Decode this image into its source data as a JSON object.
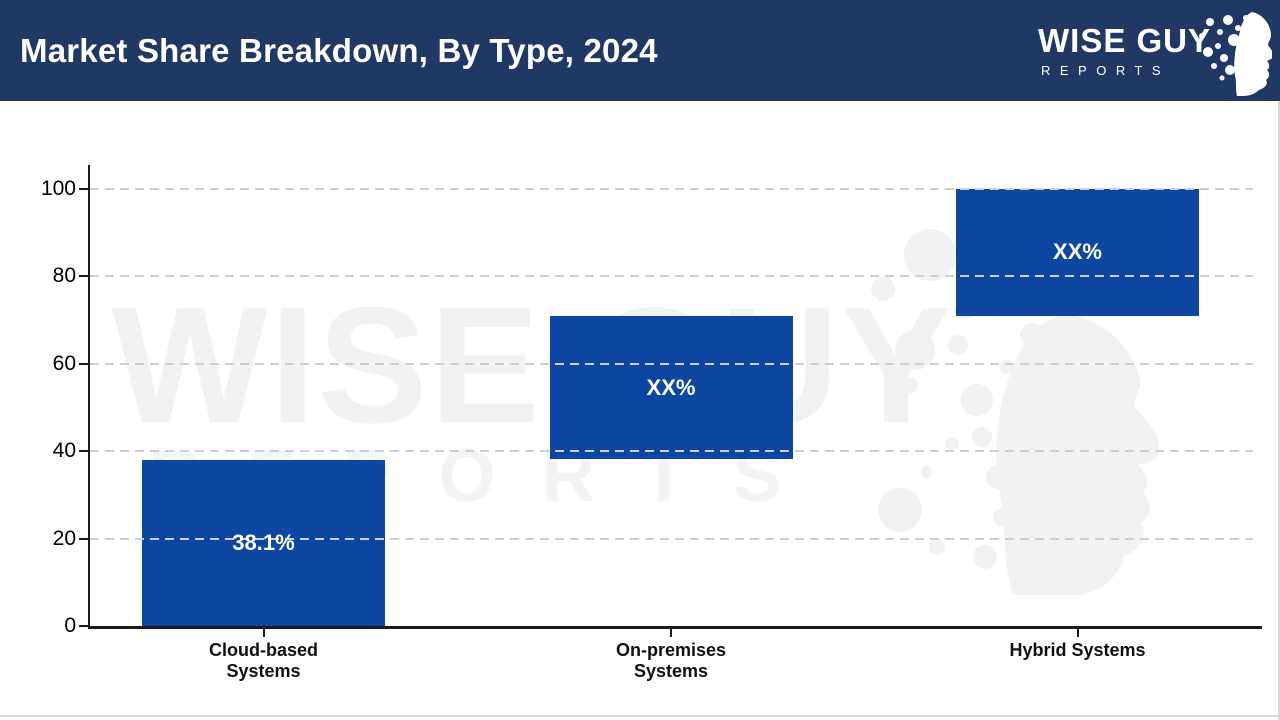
{
  "header": {
    "title": "Market Share Breakdown, By Type, 2024",
    "background_color": "#1f3864",
    "logo": {
      "line1": "WISE GUY",
      "line2": "REPORTS"
    }
  },
  "watermark": {
    "line1": "WISE GUY",
    "line2": "REPORTS"
  },
  "chart_data": {
    "type": "bar",
    "subtype": "waterfall",
    "title": "Market Share Breakdown, By Type, 2024",
    "categories": [
      [
        "Cloud-based",
        "Systems"
      ],
      [
        "On-premises",
        "Systems"
      ],
      [
        "Hybrid Systems"
      ]
    ],
    "segments": [
      {
        "category": "Cloud-based Systems",
        "start": 0,
        "end": 38.1,
        "label": "38.1%"
      },
      {
        "category": "On-premises Systems",
        "start": 38.1,
        "end": 71,
        "label": "XX%"
      },
      {
        "category": "Hybrid Systems",
        "start": 71,
        "end": 100,
        "label": "XX%"
      }
    ],
    "ylim": [
      0,
      100
    ],
    "yticks": [
      0,
      20,
      40,
      60,
      80,
      100
    ],
    "xlabel": "",
    "ylabel": "",
    "grid": {
      "horizontal": true,
      "style": "dashed",
      "color": "#cfcfcf"
    },
    "legend": null,
    "colors": {
      "bar": "#0d47a1",
      "bar_label": "#ffffff",
      "axis": "#1a1a1a",
      "tick_label": "#000000",
      "category_label": "#111111"
    }
  }
}
